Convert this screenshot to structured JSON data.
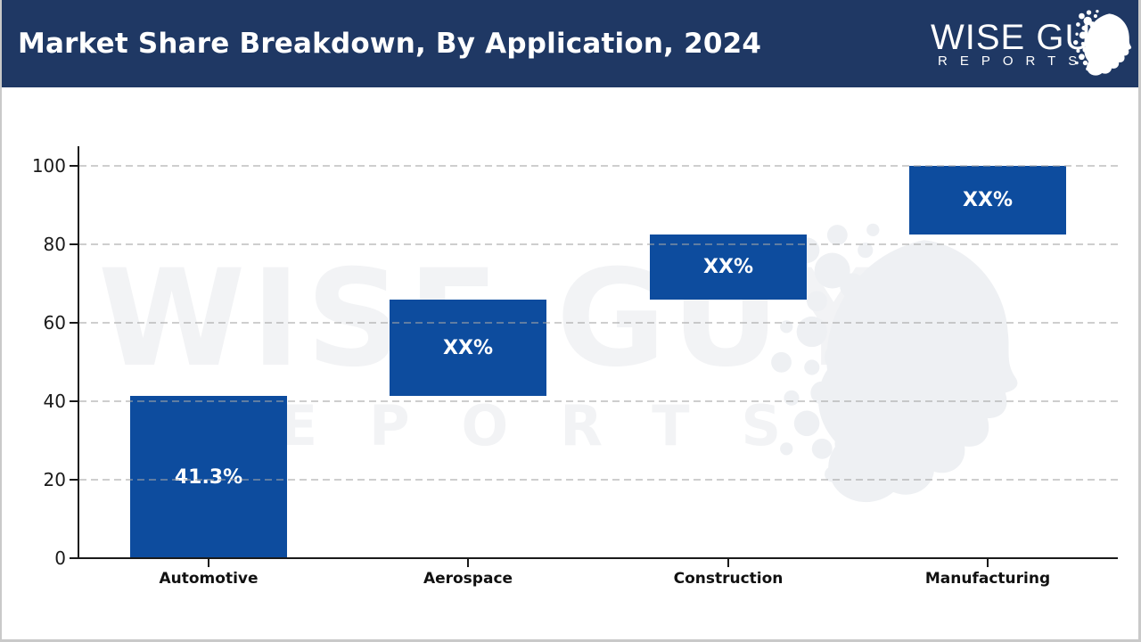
{
  "header": {
    "title": "Market Share Breakdown, By Application, 2024",
    "logo": {
      "name": "WISE GUY",
      "subname": "REPORTS"
    }
  },
  "watermark": {
    "line1": "WISE GUY",
    "line2": "REPORTS"
  },
  "colors": {
    "header_bg": "#1f3864",
    "bar": "#0d4c9e",
    "grid": "#d9d9d9",
    "axis": "#1a1a1a",
    "watermark": "#f2f3f5",
    "label_text": "#ffffff"
  },
  "chart_data": {
    "type": "bar",
    "subtype": "waterfall",
    "title": "Market Share Breakdown, By Application, 2024",
    "xlabel": "",
    "ylabel": "",
    "categories": [
      "Automotive",
      "Aerospace",
      "Construction",
      "Manufacturing"
    ],
    "segments": [
      {
        "category": "Automotive",
        "start": 0,
        "end": 41.3,
        "label": "41.3%"
      },
      {
        "category": "Aerospace",
        "start": 41.3,
        "end": 65.8,
        "label": "XX%"
      },
      {
        "category": "Construction",
        "start": 65.8,
        "end": 82.5,
        "label": "XX%"
      },
      {
        "category": "Manufacturing",
        "start": 82.5,
        "end": 100,
        "label": "XX%"
      }
    ],
    "yticks": [
      0,
      20,
      40,
      60,
      80,
      100
    ],
    "ylim": [
      0,
      105
    ],
    "grid": true,
    "grid_style": "dashed",
    "legend": false,
    "bar_color": "#0d4c9e"
  }
}
